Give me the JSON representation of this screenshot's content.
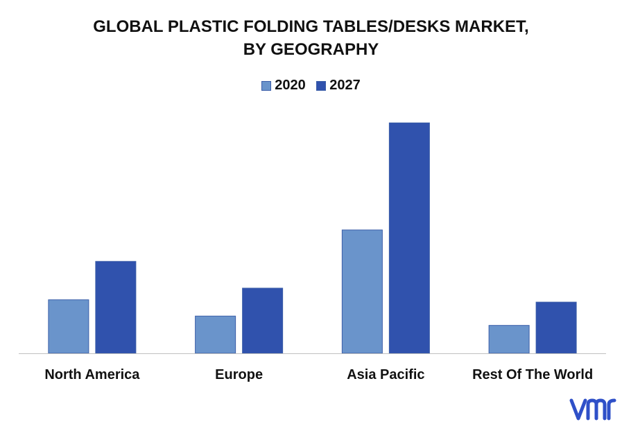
{
  "chart_data": {
    "type": "bar",
    "title_lines": [
      "GLOBAL PLASTIC FOLDING TABLES/DESKS MARKET,",
      "BY GEOGRAPHY"
    ],
    "categories": [
      "North America",
      "Europe",
      "Asia Pacific",
      "Rest Of The World"
    ],
    "series": [
      {
        "name": "2020",
        "color": "#6a94cb",
        "values": [
          23,
          16,
          53,
          12
        ]
      },
      {
        "name": "2027",
        "color": "#3052ad",
        "values": [
          39.5,
          28,
          99,
          22
        ]
      }
    ],
    "ylim": [
      0,
      100
    ],
    "grid": false,
    "legend_position": "top-center"
  },
  "logo": {
    "text": "vmr",
    "color": "#2f50c8"
  }
}
